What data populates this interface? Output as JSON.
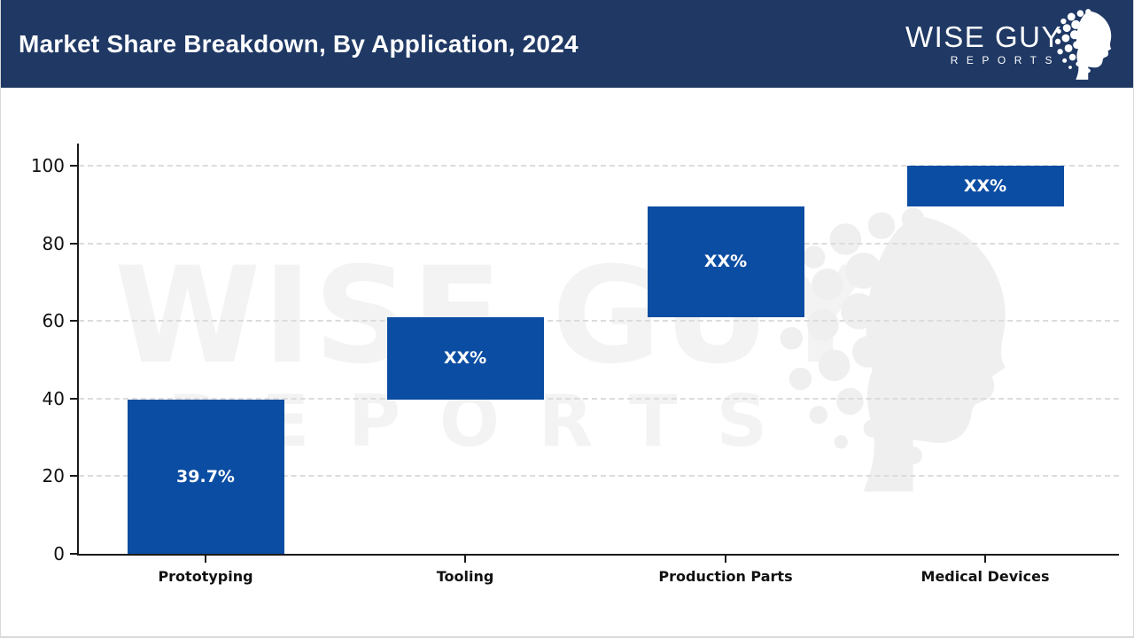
{
  "header": {
    "title": "Market Share Breakdown, By Application, 2024",
    "bg_color": "#1f3864",
    "logo": {
      "line1": "WISE GUY",
      "line2": "REPORTS"
    }
  },
  "watermark": {
    "line1": "WISE GUY",
    "line2": "REPORTS"
  },
  "chart_data": {
    "type": "bar",
    "subtype": "waterfall",
    "title": "Market Share Breakdown, By Application, 2024",
    "categories": [
      "Prototyping",
      "Tooling",
      "Production Parts",
      "Medical Devices"
    ],
    "series": [
      {
        "category": "Prototyping",
        "start": 0,
        "end": 39.7,
        "label": "39.7%"
      },
      {
        "category": "Tooling",
        "start": 39.7,
        "end": 61.0,
        "label": "XX%"
      },
      {
        "category": "Production Parts",
        "start": 61.0,
        "end": 89.5,
        "label": "XX%"
      },
      {
        "category": "Medical Devices",
        "start": 89.5,
        "end": 100.0,
        "label": "XX%"
      }
    ],
    "ylim": [
      0,
      100
    ],
    "yticks": [
      0,
      20,
      40,
      60,
      80,
      100
    ],
    "grid": "horizontal-dashed",
    "legend": "none",
    "bar_color": "#0b4da2",
    "bar_label_color": "#ffffff",
    "axis_color": "#1a1a1a",
    "gridline_color": "#dcdcdc"
  }
}
